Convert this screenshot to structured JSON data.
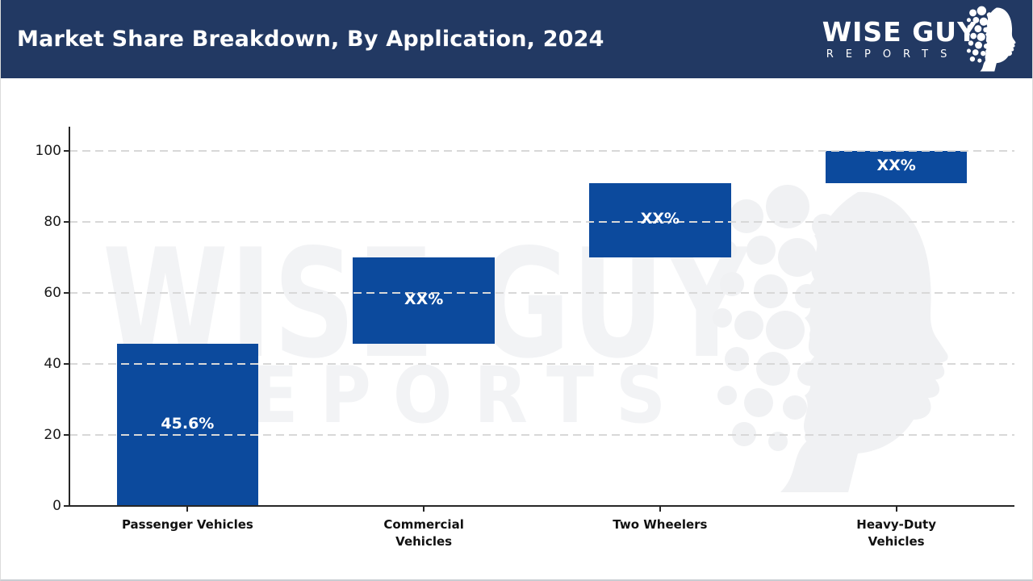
{
  "header": {
    "title": "Market Share Breakdown, By Application, 2024",
    "logo": {
      "name_top": "WISE GUY",
      "name_bottom": "REPORTS"
    }
  },
  "watermark": {
    "text_top": "WISE GUY",
    "text_bottom": "REPORTS"
  },
  "chart_data": {
    "type": "bar",
    "subtype": "stacked-waterfall-percentage",
    "title": "Market Share Breakdown, By Application, 2024",
    "categories": [
      "Passenger Vehicles",
      "Commercial\nVehicles",
      "Two Wheelers",
      "Heavy-Duty\nVehicles"
    ],
    "segments": [
      {
        "category": "Passenger Vehicles",
        "start": 0,
        "end": 45.6,
        "value": 45.6,
        "label": "45.6%"
      },
      {
        "category": "Commercial Vehicles",
        "start": 45.6,
        "end": 70,
        "value": 24.4,
        "label": "XX%"
      },
      {
        "category": "Two Wheelers",
        "start": 70,
        "end": 91,
        "value": 21,
        "label": "XX%"
      },
      {
        "category": "Heavy-Duty Vehicles",
        "start": 91,
        "end": 100,
        "value": 9,
        "label": "XX%"
      }
    ],
    "ylim": [
      0,
      100
    ],
    "yticks": [
      0,
      20,
      40,
      60,
      80,
      100
    ],
    "grid": "horizontal-dashed",
    "legend": "none",
    "colors": {
      "bar": "#0c4a9d",
      "bar_label": "#ffffff",
      "header_bg": "#223963",
      "axis": "#262626",
      "gridline": "#d8d8d8",
      "watermark": "#f2f3f5"
    }
  }
}
